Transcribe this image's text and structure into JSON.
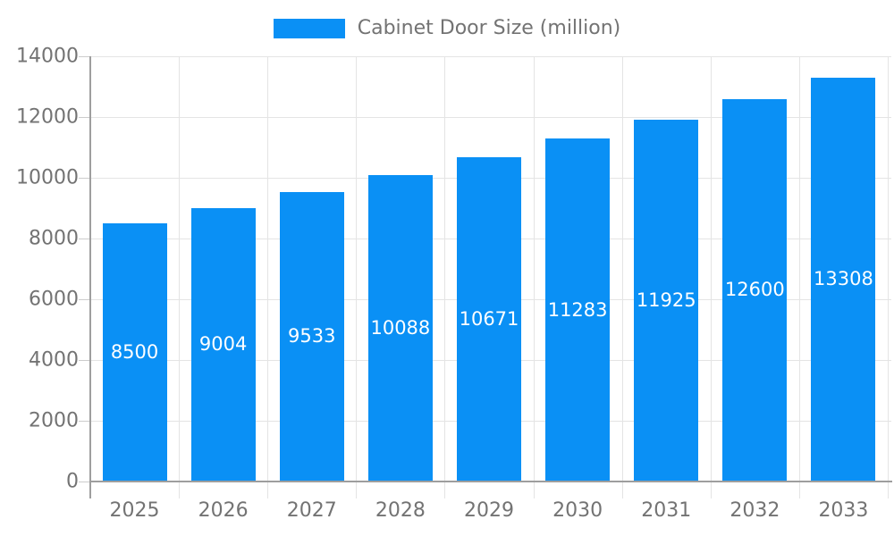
{
  "chart_data": {
    "type": "bar",
    "title": "",
    "legend": "Cabinet Door Size (million)",
    "legend_position": "top-center",
    "categories": [
      "2025",
      "2026",
      "2027",
      "2028",
      "2029",
      "2030",
      "2031",
      "2032",
      "2033"
    ],
    "series": [
      {
        "name": "Cabinet Door Size (million)",
        "values": [
          8500,
          9004,
          9533,
          10088,
          10671,
          11283,
          11925,
          12600,
          13308
        ]
      }
    ],
    "data_labels": [
      "8500",
      "9004",
      "9533",
      "10088",
      "10671",
      "11283",
      "11925",
      "12600",
      "13308"
    ],
    "xlabel": "",
    "ylabel": "",
    "ylim": [
      0,
      14000
    ],
    "ytick_step": 2000,
    "yticks": [
      "0",
      "2000",
      "4000",
      "6000",
      "8000",
      "10000",
      "12000",
      "14000"
    ],
    "grid": true,
    "colors": {
      "bar": "#0a90f5",
      "bar_label_text": "#ffffff",
      "axis_text": "#737373",
      "axis_line": "#9e9e9e",
      "gridline": "#e4e4e4",
      "tick": "#cccccc"
    }
  }
}
